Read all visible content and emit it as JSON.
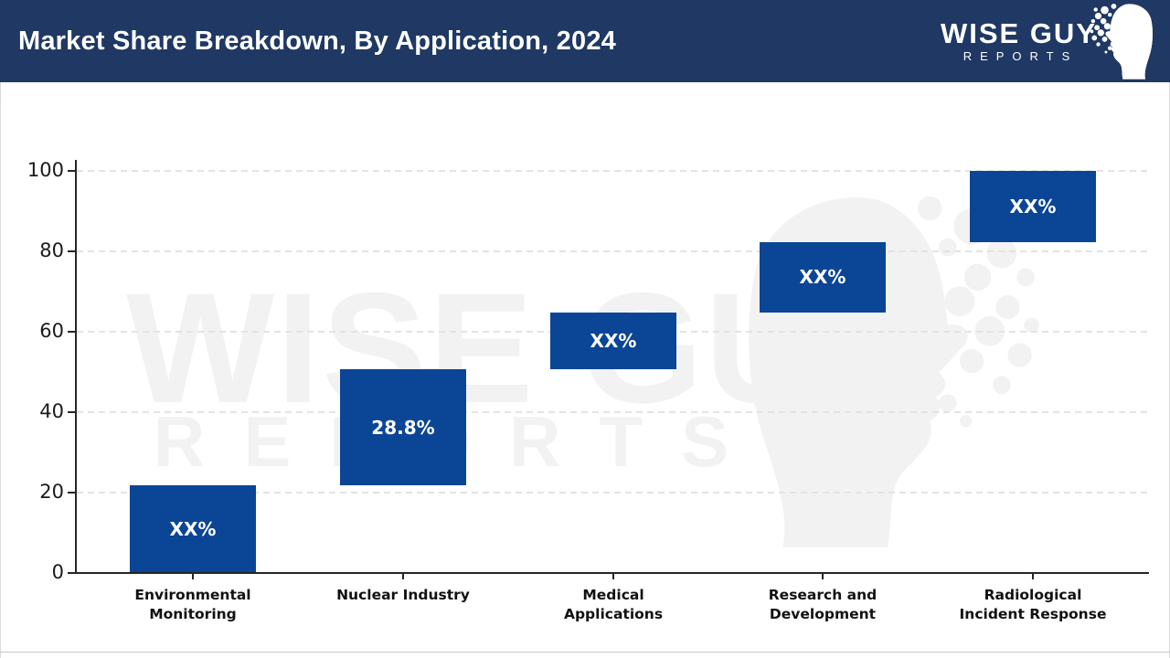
{
  "header": {
    "title": "Market Share Breakdown, By Application, 2024",
    "logo": {
      "line1": "WISE GUY",
      "line2": "REPORTS"
    }
  },
  "watermark": {
    "line1": "WISE GUY",
    "line2": "REPORTS"
  },
  "colors": {
    "header_bg": "#1f3864",
    "bar": "#0b4596",
    "bar_label": "#ffffff",
    "watermark": "#f2f2f2",
    "gridline": "#e3e3e3",
    "axis": "#262626",
    "tick_label": "#1a1a1a"
  },
  "chart_data": {
    "type": "bar",
    "subtype": "waterfall-floating-bars",
    "title": "Market Share Breakdown, By Application, 2024",
    "categories": [
      [
        "Environmental",
        "Monitoring"
      ],
      [
        "Nuclear Industry"
      ],
      [
        "Medical",
        "Applications"
      ],
      [
        "Research and",
        "Development"
      ],
      [
        "Radiological",
        "Incident Response"
      ]
    ],
    "segments": [
      {
        "category": "Environmental Monitoring",
        "start": 0,
        "end": 21.8,
        "label": "XX%"
      },
      {
        "category": "Nuclear Industry",
        "start": 21.8,
        "end": 50.6,
        "label": "28.8%"
      },
      {
        "category": "Medical Applications",
        "start": 50.6,
        "end": 64.8,
        "label": "XX%"
      },
      {
        "category": "Research and Development",
        "start": 64.8,
        "end": 82.3,
        "label": "XX%"
      },
      {
        "category": "Radiological Incident Response",
        "start": 82.3,
        "end": 100,
        "label": "XX%"
      }
    ],
    "y_ticks": [
      0,
      20,
      40,
      60,
      80,
      100
    ],
    "ylim": [
      0,
      100
    ],
    "xlabel": "",
    "ylabel": "",
    "grid": "horizontal-dashed",
    "legend": "none"
  }
}
